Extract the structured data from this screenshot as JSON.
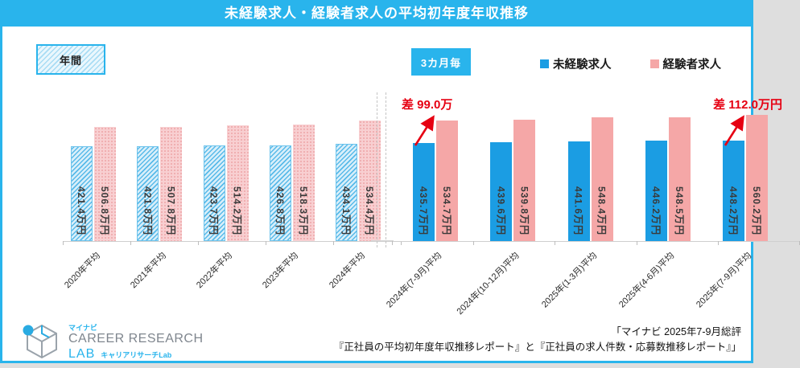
{
  "title": "未経験求人・経験者求人の平均初年度年収推移",
  "controls": {
    "yearly_label": "年間",
    "quarterly_label": "3カ月毎"
  },
  "legend": [
    {
      "label": "未経験求人",
      "color": "#1b9de3"
    },
    {
      "label": "経験者求人",
      "color": "#f5a7a7"
    }
  ],
  "colors": {
    "cyan": "#29b4ec",
    "bar_blue": "#1b9de3",
    "bar_pink": "#f5a7a7",
    "annotation_red": "#e60012"
  },
  "chart_data": [
    {
      "type": "bar",
      "mode_label": "年間",
      "style": "hatched",
      "unit": "万円",
      "ylim": [
        0,
        590
      ],
      "grid": false,
      "categories": [
        "2020年平均",
        "2021年平均",
        "2022年平均",
        "2023年平均",
        "2024年平均"
      ],
      "series": [
        {
          "name": "未経験求人",
          "values": [
            421.4,
            421.8,
            423.7,
            426.8,
            434.1
          ]
        },
        {
          "name": "経験者求人",
          "values": [
            506.8,
            507.8,
            514.2,
            518.3,
            534.4
          ]
        }
      ]
    },
    {
      "type": "bar",
      "mode_label": "3カ月毎",
      "style": "solid",
      "unit": "万円",
      "ylim": [
        0,
        590
      ],
      "grid": false,
      "legend_position": "top",
      "categories": [
        "2024年(7-9月)平均",
        "2024年(10-12月)平均",
        "2025年(1-3月)平均",
        "2025年(4-6月)平均",
        "2025年(7-9月)平均"
      ],
      "series": [
        {
          "name": "未経験求人",
          "values": [
            435.7,
            439.6,
            441.6,
            446.2,
            448.2
          ]
        },
        {
          "name": "経験者求人",
          "values": [
            534.7,
            539.8,
            548.4,
            548.5,
            560.2
          ]
        }
      ],
      "annotations": [
        {
          "category_index": 0,
          "text": "差 99.0万"
        },
        {
          "category_index": 4,
          "text": "差 112.0万円"
        }
      ]
    }
  ],
  "footer": {
    "logo": {
      "jp_top": "マイナビ",
      "main": "CAREER RESEARCH",
      "lab": "LAB",
      "lab_jp": "キャリアリサーチLab"
    },
    "source_line1": "「マイナビ 2025年7-9月総評",
    "source_line2": "『正社員の平均初年度年収推移レポート』と『正社員の求人件数・応募数推移レポート』」"
  }
}
